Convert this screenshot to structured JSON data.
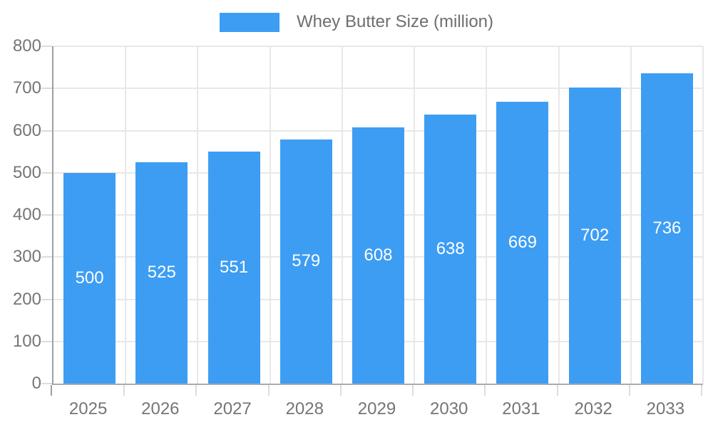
{
  "legend": {
    "label": "Whey Butter Size (million)"
  },
  "colors": {
    "bar": "#3d9df3",
    "grid": "#e8e8e8",
    "axis": "#9e9e9e",
    "tick": "#dcdcdc",
    "axis_text": "#757575",
    "legend_text": "#6e6e6e",
    "bar_label_text": "#ffffff",
    "background": "#ffffff"
  },
  "chart_data": {
    "type": "bar",
    "title": "Whey Butter Size (million)",
    "series_name": "Whey Butter Size (million)",
    "categories": [
      "2025",
      "2026",
      "2027",
      "2028",
      "2029",
      "2030",
      "2031",
      "2032",
      "2033"
    ],
    "values": [
      500,
      525,
      551,
      579,
      608,
      638,
      669,
      702,
      736
    ],
    "xlabel": "",
    "ylabel": "",
    "ylim": [
      0,
      800
    ],
    "ytick_step": 100,
    "ytick_labels": [
      "0",
      "100",
      "200",
      "300",
      "400",
      "500",
      "600",
      "700",
      "800"
    ],
    "grid": true,
    "legend_position": "top-center",
    "bar_labels": "inside-center"
  }
}
